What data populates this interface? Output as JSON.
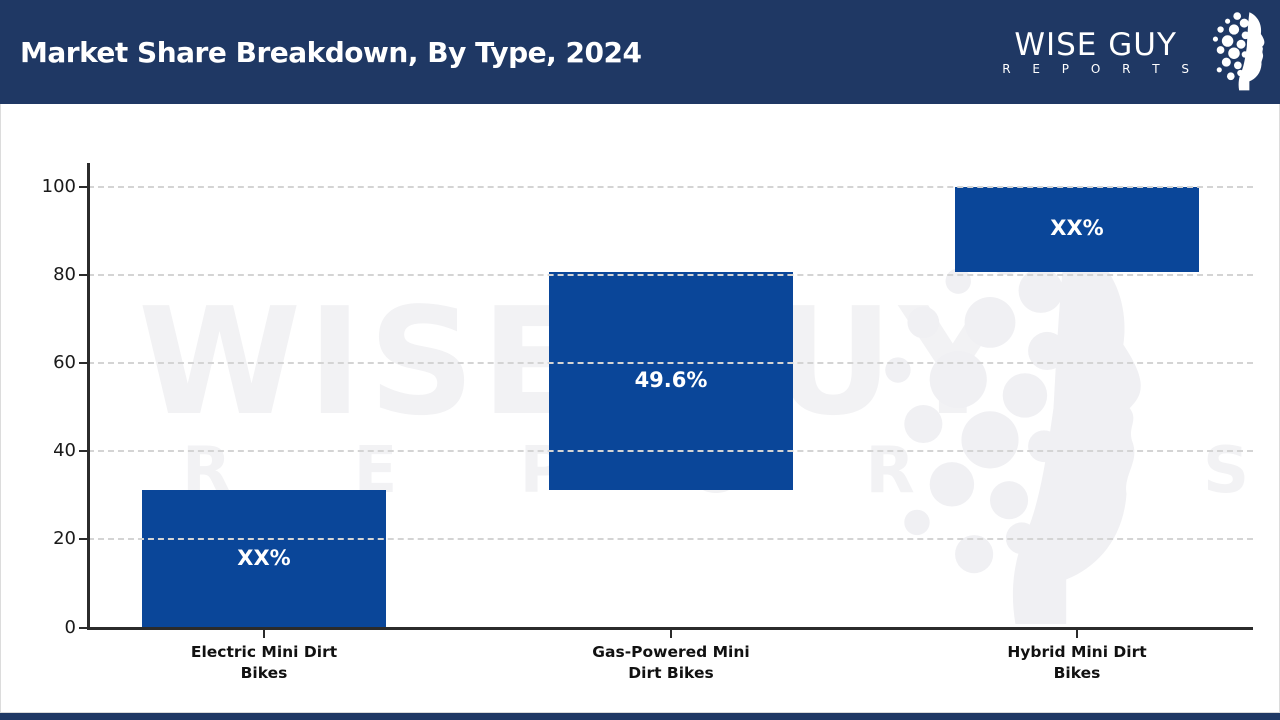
{
  "header": {
    "title": "Market Share Breakdown, By Type, 2024",
    "logo_line1": "WISE GUY",
    "logo_line2": "R E P O R T S"
  },
  "watermark": {
    "line1": "WISE GUY",
    "line2": "R E P O R T S"
  },
  "colors": {
    "header_background": "#1f3864",
    "footer_band": "#1f3864",
    "bar_fill": "#0a4699",
    "gridline": "#d4d4d4",
    "axis": "#2b2b2b",
    "watermark": "#f2f2f4",
    "title_text": "#ffffff",
    "bar_label_text": "#ffffff"
  },
  "chart_data": {
    "type": "bar",
    "subtype": "waterfall",
    "title": "Market Share Breakdown, By Type, 2024",
    "categories": [
      "Electric Mini Dirt Bikes",
      "Gas-Powered Mini Dirt Bikes",
      "Hybrid Mini Dirt Bikes"
    ],
    "category_lines": [
      [
        "Electric Mini Dirt",
        "Bikes"
      ],
      [
        "Gas-Powered Mini",
        "Dirt Bikes"
      ],
      [
        "Hybrid Mini Dirt",
        "Bikes"
      ]
    ],
    "bars": [
      {
        "category": "Electric Mini Dirt Bikes",
        "base": 0,
        "top": 31.2,
        "value": 31.2,
        "value_label": "XX%"
      },
      {
        "category": "Gas-Powered Mini Dirt Bikes",
        "base": 31.2,
        "top": 80.8,
        "value": 49.6,
        "value_label": "49.6%"
      },
      {
        "category": "Hybrid Mini Dirt Bikes",
        "base": 80.8,
        "top": 100,
        "value": 19.2,
        "value_label": "XX%"
      }
    ],
    "y_ticks": [
      0,
      20,
      40,
      60,
      80,
      100
    ],
    "ylim": [
      0,
      106
    ],
    "xlabel": "",
    "ylabel": "",
    "grid": "horizontal-dashed",
    "legend": "none"
  }
}
